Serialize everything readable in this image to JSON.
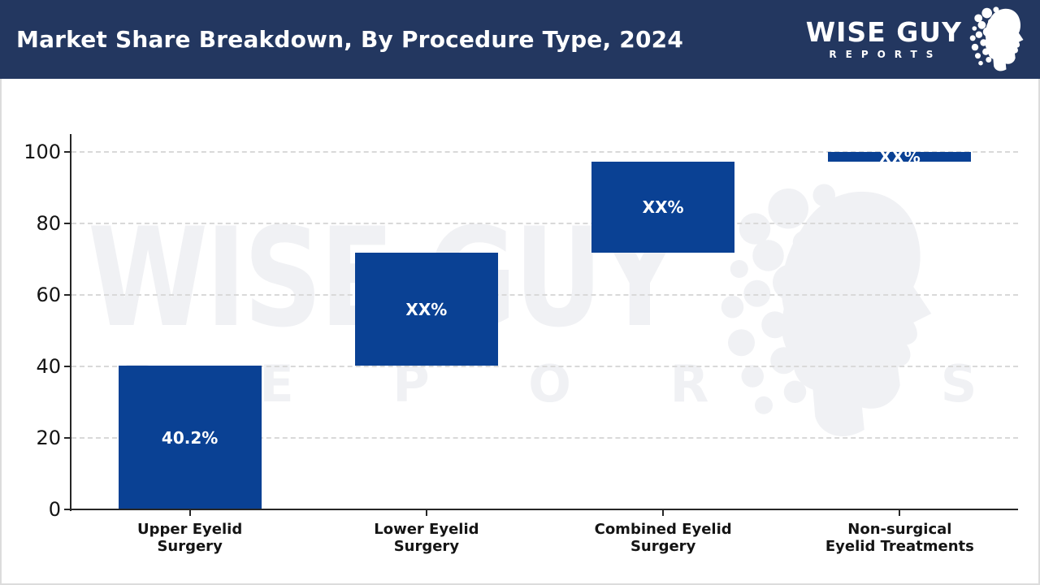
{
  "header": {
    "title": "Market Share Breakdown, By Procedure Type, 2024",
    "bg_color": "#233760",
    "logo": {
      "wordmark": "WISE GUY",
      "subtext": "REPORTS"
    }
  },
  "watermark": {
    "wordmark": "WISE GUY",
    "subtext": "R E P O R T S"
  },
  "chart_data": {
    "type": "bar",
    "subtype": "waterfall-stacked-percent",
    "title": "Market Share Breakdown, By Procedure Type, 2024",
    "xlabel": "",
    "ylabel": "",
    "ylim": [
      0,
      105
    ],
    "y_ticks": [
      0,
      20,
      40,
      60,
      80,
      100
    ],
    "grid": "horizontal-dashed",
    "legend": "none",
    "bar_color": "#0a4194",
    "bar_label_color": "#ffffff",
    "categories": [
      "Upper Eyelid Surgery",
      "Lower Eyelid Surgery",
      "Combined Eyelid Surgery",
      "Non-surgical Eyelid Treatments"
    ],
    "category_lines": [
      [
        "Upper Eyelid",
        "Surgery"
      ],
      [
        "Lower Eyelid",
        "Surgery"
      ],
      [
        "Combined Eyelid",
        "Surgery"
      ],
      [
        "Non-surgical",
        "Eyelid Treatments"
      ]
    ],
    "segments": [
      {
        "category": "Upper Eyelid Surgery",
        "start": 0,
        "end": 40.2,
        "label": "40.2%"
      },
      {
        "category": "Lower Eyelid Surgery",
        "start": 40.2,
        "end": 71.8,
        "label": "XX%"
      },
      {
        "category": "Combined Eyelid Surgery",
        "start": 71.8,
        "end": 97.2,
        "label": "XX%"
      },
      {
        "category": "Non-surgical Eyelid Treatments",
        "start": 97.2,
        "end": 100,
        "label": "XX%"
      }
    ]
  }
}
